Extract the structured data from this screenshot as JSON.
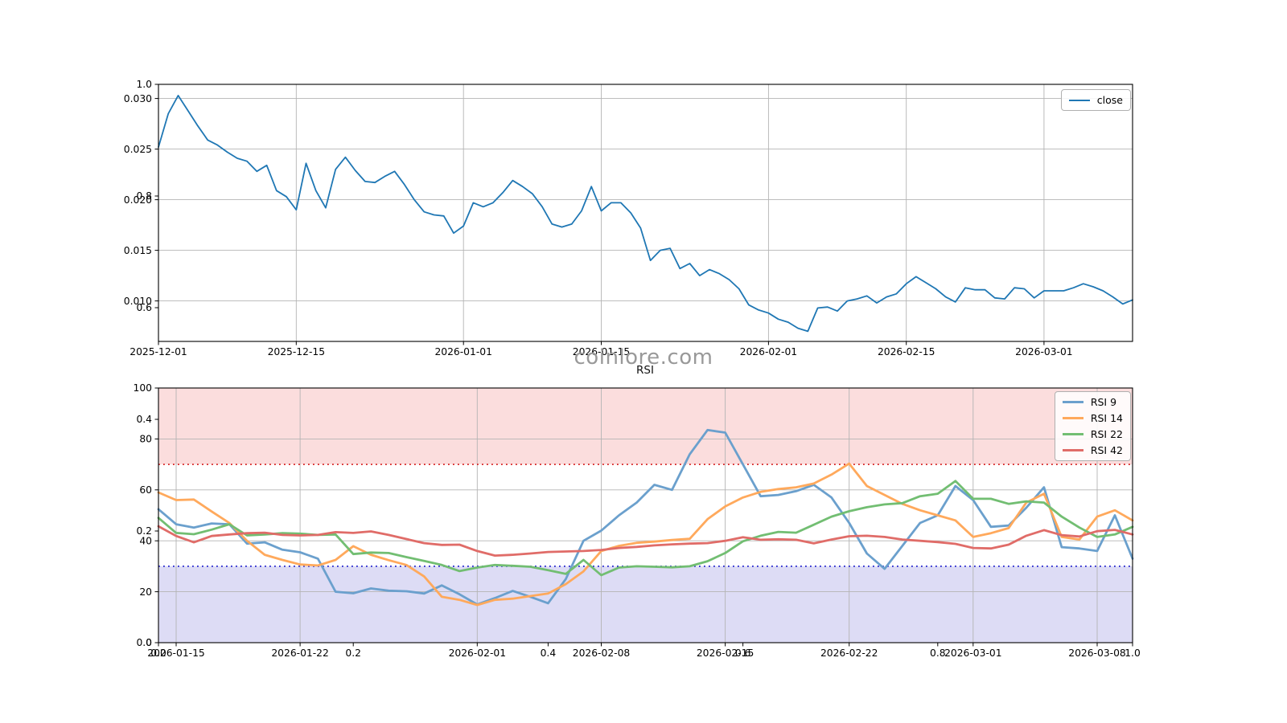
{
  "watermark": {
    "text": "coinlore.com",
    "color": "#999999"
  },
  "colors": {
    "background": "#ffffff",
    "grid": "#b4b4b4",
    "spine": "#000000",
    "close_line": "#1f77b4",
    "rsi9": "#6ba0cd",
    "rsi14": "#ffa95c",
    "rsi22": "#72be72",
    "rsi42": "#e06c68",
    "overbought_band": "#fbdddd",
    "oversold_band": "#dddcf5",
    "overbought_line": "#d62020",
    "oversold_line": "#2020cc"
  },
  "overlay_axis": {
    "x_tick_labels": [
      "0.0",
      "0.2",
      "0.4",
      "0.6",
      "0.8",
      "1.0"
    ],
    "y_tick_labels": [
      "1.0",
      "0.8",
      "0.6",
      "0.4",
      "0.2",
      "0.0"
    ]
  },
  "chart_data": [
    {
      "type": "line",
      "name": "price",
      "title": "",
      "x_start": "2025-12-01",
      "x_max_day": 99,
      "x_tick_days": [
        0,
        14,
        31,
        45,
        62,
        76,
        90
      ],
      "x_tick_labels": [
        "2025-12-01",
        "2025-12-15",
        "2026-01-01",
        "2026-01-15",
        "2026-02-01",
        "2026-02-15",
        "2026-03-01"
      ],
      "ylim": [
        0.006,
        0.0314
      ],
      "y_ticks": [
        0.01,
        0.015,
        0.02,
        0.025,
        0.03
      ],
      "y_tick_labels": [
        "0.010",
        "0.015",
        "0.020",
        "0.025",
        "0.030"
      ],
      "grid": true,
      "legend": {
        "position": "upper right",
        "entries": [
          {
            "label": "close",
            "color": "#1f77b4",
            "thickness": 2
          }
        ]
      },
      "series": [
        {
          "name": "close",
          "color": "#1f77b4",
          "width": 1.8,
          "values": [
            0.0252,
            0.0285,
            0.0303,
            0.0288,
            0.0273,
            0.0259,
            0.0254,
            0.0247,
            0.0241,
            0.0238,
            0.0228,
            0.0234,
            0.0209,
            0.0203,
            0.019,
            0.0236,
            0.0209,
            0.0192,
            0.023,
            0.0242,
            0.0229,
            0.0218,
            0.0217,
            0.0223,
            0.0228,
            0.0215,
            0.02,
            0.0188,
            0.0185,
            0.0184,
            0.0167,
            0.0174,
            0.0197,
            0.0193,
            0.0197,
            0.0207,
            0.0219,
            0.0213,
            0.0206,
            0.0193,
            0.0176,
            0.0173,
            0.0176,
            0.0189,
            0.0213,
            0.0189,
            0.0197,
            0.0197,
            0.0187,
            0.0172,
            0.014,
            0.015,
            0.0152,
            0.0132,
            0.0137,
            0.0125,
            0.0131,
            0.0127,
            0.0121,
            0.0112,
            0.0096,
            0.0091,
            0.0088,
            0.0082,
            0.0079,
            0.0073,
            0.007,
            0.0093,
            0.0094,
            0.009,
            0.01,
            0.0102,
            0.0105,
            0.0098,
            0.0104,
            0.0107,
            0.0117,
            0.0124,
            0.0118,
            0.0112,
            0.0104,
            0.0099,
            0.0113,
            0.0111,
            0.0111,
            0.0103,
            0.0102,
            0.0113,
            0.0112,
            0.0103,
            0.011,
            0.011,
            0.011,
            0.0113,
            0.0117,
            0.0114,
            0.011,
            0.0104,
            0.0097,
            0.0101
          ]
        }
      ]
    },
    {
      "type": "line",
      "name": "rsi",
      "title": "RSI",
      "x_start": "2026-01-14",
      "x_max_day": 55,
      "x_tick_days": [
        1,
        8,
        18,
        25,
        32,
        39,
        46,
        53
      ],
      "x_tick_labels": [
        "2026-01-15",
        "2026-01-22",
        "2026-02-01",
        "2026-02-08",
        "2026-02-15",
        "2026-02-22",
        "2026-03-01",
        "2026-03-08"
      ],
      "ylim": [
        0,
        100
      ],
      "y_ticks": [
        0,
        20,
        40,
        60,
        80,
        100
      ],
      "y_tick_labels": [
        "0",
        "20",
        "40",
        "60",
        "80",
        "100"
      ],
      "grid": true,
      "bands": [
        {
          "from": 70,
          "to": 100,
          "color": "#fbdddd",
          "name": "overbought-band"
        },
        {
          "from": 0,
          "to": 30,
          "color": "#dddcf5",
          "name": "oversold-band"
        }
      ],
      "hlines": [
        {
          "value": 70,
          "color": "#d62020",
          "style": "dotted",
          "name": "overbought-line"
        },
        {
          "value": 30,
          "color": "#2020cc",
          "style": "dotted",
          "name": "oversold-line"
        }
      ],
      "legend": {
        "position": "upper right",
        "entries": [
          {
            "label": "RSI 9",
            "color": "#6ba0cd",
            "thickness": 3.5
          },
          {
            "label": "RSI 14",
            "color": "#ffa95c",
            "thickness": 3.5
          },
          {
            "label": "RSI 22",
            "color": "#72be72",
            "thickness": 3.5
          },
          {
            "label": "RSI 42",
            "color": "#e06c68",
            "thickness": 3.5
          }
        ]
      },
      "series": [
        {
          "name": "RSI 9",
          "color": "#6ba0cd",
          "width": 2.8,
          "values": [
            52.4,
            46.5,
            45.2,
            46.8,
            46.5,
            38.9,
            39.4,
            36.5,
            35.5,
            33,
            20,
            19.4,
            21.3,
            20.4,
            20.2,
            19.3,
            22.5,
            19,
            15,
            17.5,
            20.3,
            18,
            15.5,
            25,
            40,
            44,
            50,
            55,
            62,
            60,
            74,
            83.5,
            82.5,
            70,
            57.5,
            58,
            59.5,
            62,
            57,
            47,
            35,
            29,
            38,
            47,
            50,
            61.5,
            56,
            45.5,
            46,
            53,
            61,
            37.5,
            37,
            36,
            50,
            33
          ]
        },
        {
          "name": "RSI 14",
          "color": "#ffa95c",
          "width": 2.8,
          "values": [
            59,
            56,
            56.2,
            51.5,
            47,
            40,
            34.5,
            32.5,
            30.7,
            30.3,
            32.5,
            37.9,
            34.5,
            32.4,
            30.5,
            26,
            18,
            16.8,
            14.8,
            16.8,
            17.3,
            18.3,
            19.3,
            23,
            28,
            36,
            38,
            39.2,
            39.7,
            40.3,
            40.8,
            48.5,
            53.5,
            57,
            59.2,
            60.3,
            61,
            62.5,
            66,
            70.3,
            61.5,
            58,
            54.5,
            52,
            50,
            48,
            41.5,
            43,
            45,
            55,
            58.5,
            41.5,
            40.5,
            49.5,
            52,
            48
          ]
        },
        {
          "name": "RSI 22",
          "color": "#72be72",
          "width": 2.8,
          "values": [
            49,
            43.1,
            42.6,
            44.4,
            46.5,
            42.1,
            42.5,
            43,
            42.8,
            42.3,
            42.5,
            34.8,
            35.4,
            35.2,
            33.6,
            32.1,
            30.5,
            28.1,
            29.5,
            30.5,
            30.2,
            29.8,
            28.5,
            27,
            32.5,
            26.5,
            29.5,
            30,
            29.8,
            29.6,
            30,
            32,
            35.2,
            39.8,
            42,
            43.5,
            43.2,
            46.3,
            49.5,
            51.6,
            53.2,
            54.3,
            54.8,
            57.5,
            58.5,
            63.5,
            56.5,
            56.5,
            54.5,
            55.5,
            55,
            49.5,
            45.2,
            41.5,
            42.5,
            45.5
          ]
        },
        {
          "name": "RSI 42",
          "color": "#e06c68",
          "width": 2.8,
          "values": [
            45.7,
            41.9,
            39.4,
            41.9,
            42.5,
            43,
            43.2,
            42.3,
            42.1,
            42.3,
            43.4,
            43.1,
            43.7,
            42.3,
            40.7,
            39.1,
            38.4,
            38.5,
            36,
            34.2,
            34.5,
            35,
            35.6,
            35.8,
            36,
            36.4,
            37.2,
            37.6,
            38.2,
            38.6,
            38.9,
            39.1,
            40,
            41.4,
            40.4,
            40.6,
            40.4,
            39,
            40.5,
            41.8,
            42,
            41.5,
            40.5,
            40,
            39.5,
            38.8,
            37.2,
            37,
            38.5,
            42,
            44.2,
            42.2,
            41.7,
            43.8,
            44.3,
            42.5
          ]
        }
      ]
    }
  ]
}
